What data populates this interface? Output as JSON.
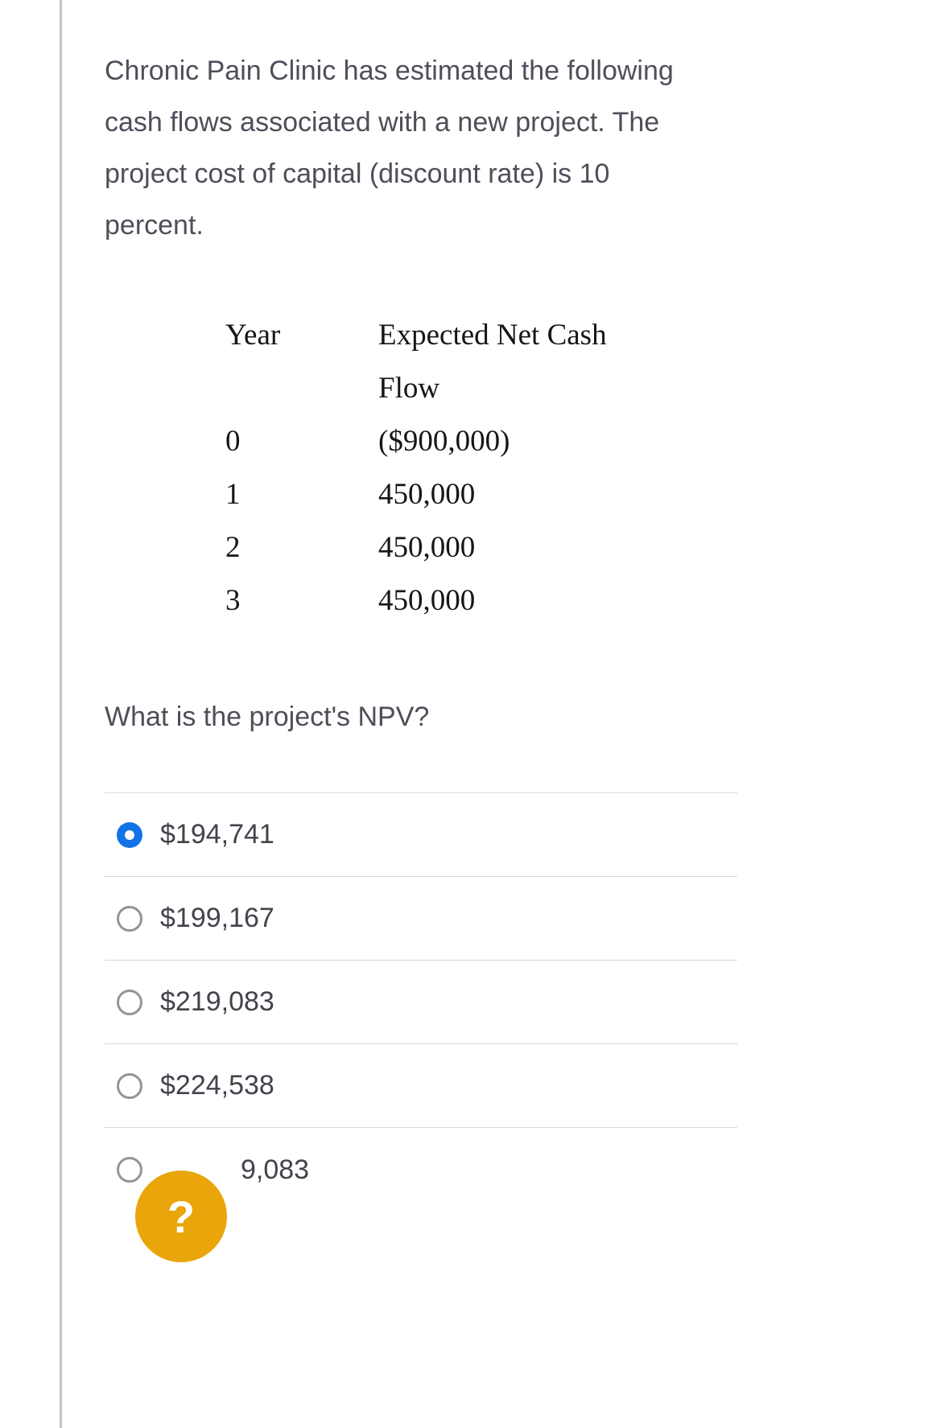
{
  "question": {
    "text": "Chronic Pain Clinic has estimated the following cash flows associated with a new project. The project cost of capital (discount rate) is 10 percent.",
    "prompt": "What is the project's NPV?"
  },
  "table": {
    "headers": [
      "Year",
      "Expected Net Cash Flow"
    ],
    "rows": [
      {
        "year": "0",
        "flow": "($900,000)"
      },
      {
        "year": "1",
        "flow": "450,000"
      },
      {
        "year": "2",
        "flow": "450,000"
      },
      {
        "year": "3",
        "flow": "450,000"
      }
    ]
  },
  "options": [
    {
      "label": "$194,741",
      "selected": true
    },
    {
      "label": "$199,167",
      "selected": false
    },
    {
      "label": "$219,083",
      "selected": false
    },
    {
      "label": "$224,538",
      "selected": false
    },
    {
      "label": "9,083",
      "selected": false
    }
  ],
  "help": {
    "icon": "?"
  },
  "colors": {
    "selected_radio_blue": "#1273e6",
    "help_button_gold": "#e9a50a",
    "divider_gray": "#d9d9d9"
  }
}
